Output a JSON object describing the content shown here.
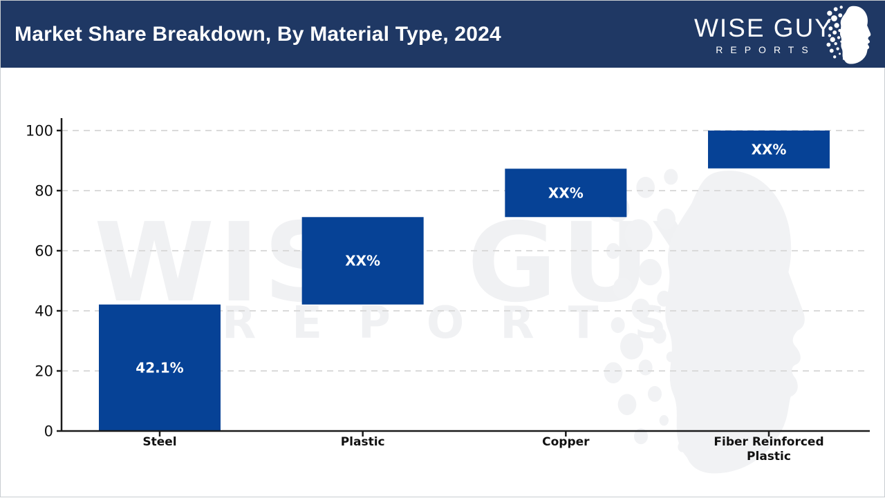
{
  "header": {
    "title": "Market Share Breakdown, By Material Type, 2024",
    "logo": {
      "line1": "WISE GUY",
      "line2": "REPORTS"
    }
  },
  "watermark": {
    "line1": "WISE GUY",
    "line2": "REPORTS"
  },
  "colors": {
    "header_bg": "#1f3864",
    "bar": "#064296",
    "grid": "#dadada",
    "axis": "#1a1a1a",
    "bar_label": "#ffffff",
    "watermark": "#f0f1f3"
  },
  "chart_data": {
    "type": "bar",
    "subtype": "waterfall",
    "title": "Market Share Breakdown, By Material Type, 2024",
    "xlabel": "",
    "ylabel": "",
    "ylim": [
      0,
      100
    ],
    "yticks": [
      0,
      20,
      40,
      60,
      80,
      100
    ],
    "grid": "horizontal-dashed",
    "legend": "none",
    "categories": [
      "Steel",
      "Plastic",
      "Copper",
      "Fiber Reinforced Plastic"
    ],
    "category_label_lines": [
      [
        "Steel"
      ],
      [
        "Plastic"
      ],
      [
        "Copper"
      ],
      [
        "Fiber Reinforced",
        "Plastic"
      ]
    ],
    "series": [
      {
        "name": "Market Share",
        "segments": [
          {
            "category": "Steel",
            "start": 0,
            "end": 42.1,
            "label": "42.1%"
          },
          {
            "category": "Plastic",
            "start": 42.1,
            "end": 71.2,
            "label": "XX%"
          },
          {
            "category": "Copper",
            "start": 71.2,
            "end": 87.3,
            "label": "XX%"
          },
          {
            "category": "Fiber Reinforced Plastic",
            "start": 87.4,
            "end": 100,
            "label": "XX%"
          }
        ]
      }
    ]
  }
}
